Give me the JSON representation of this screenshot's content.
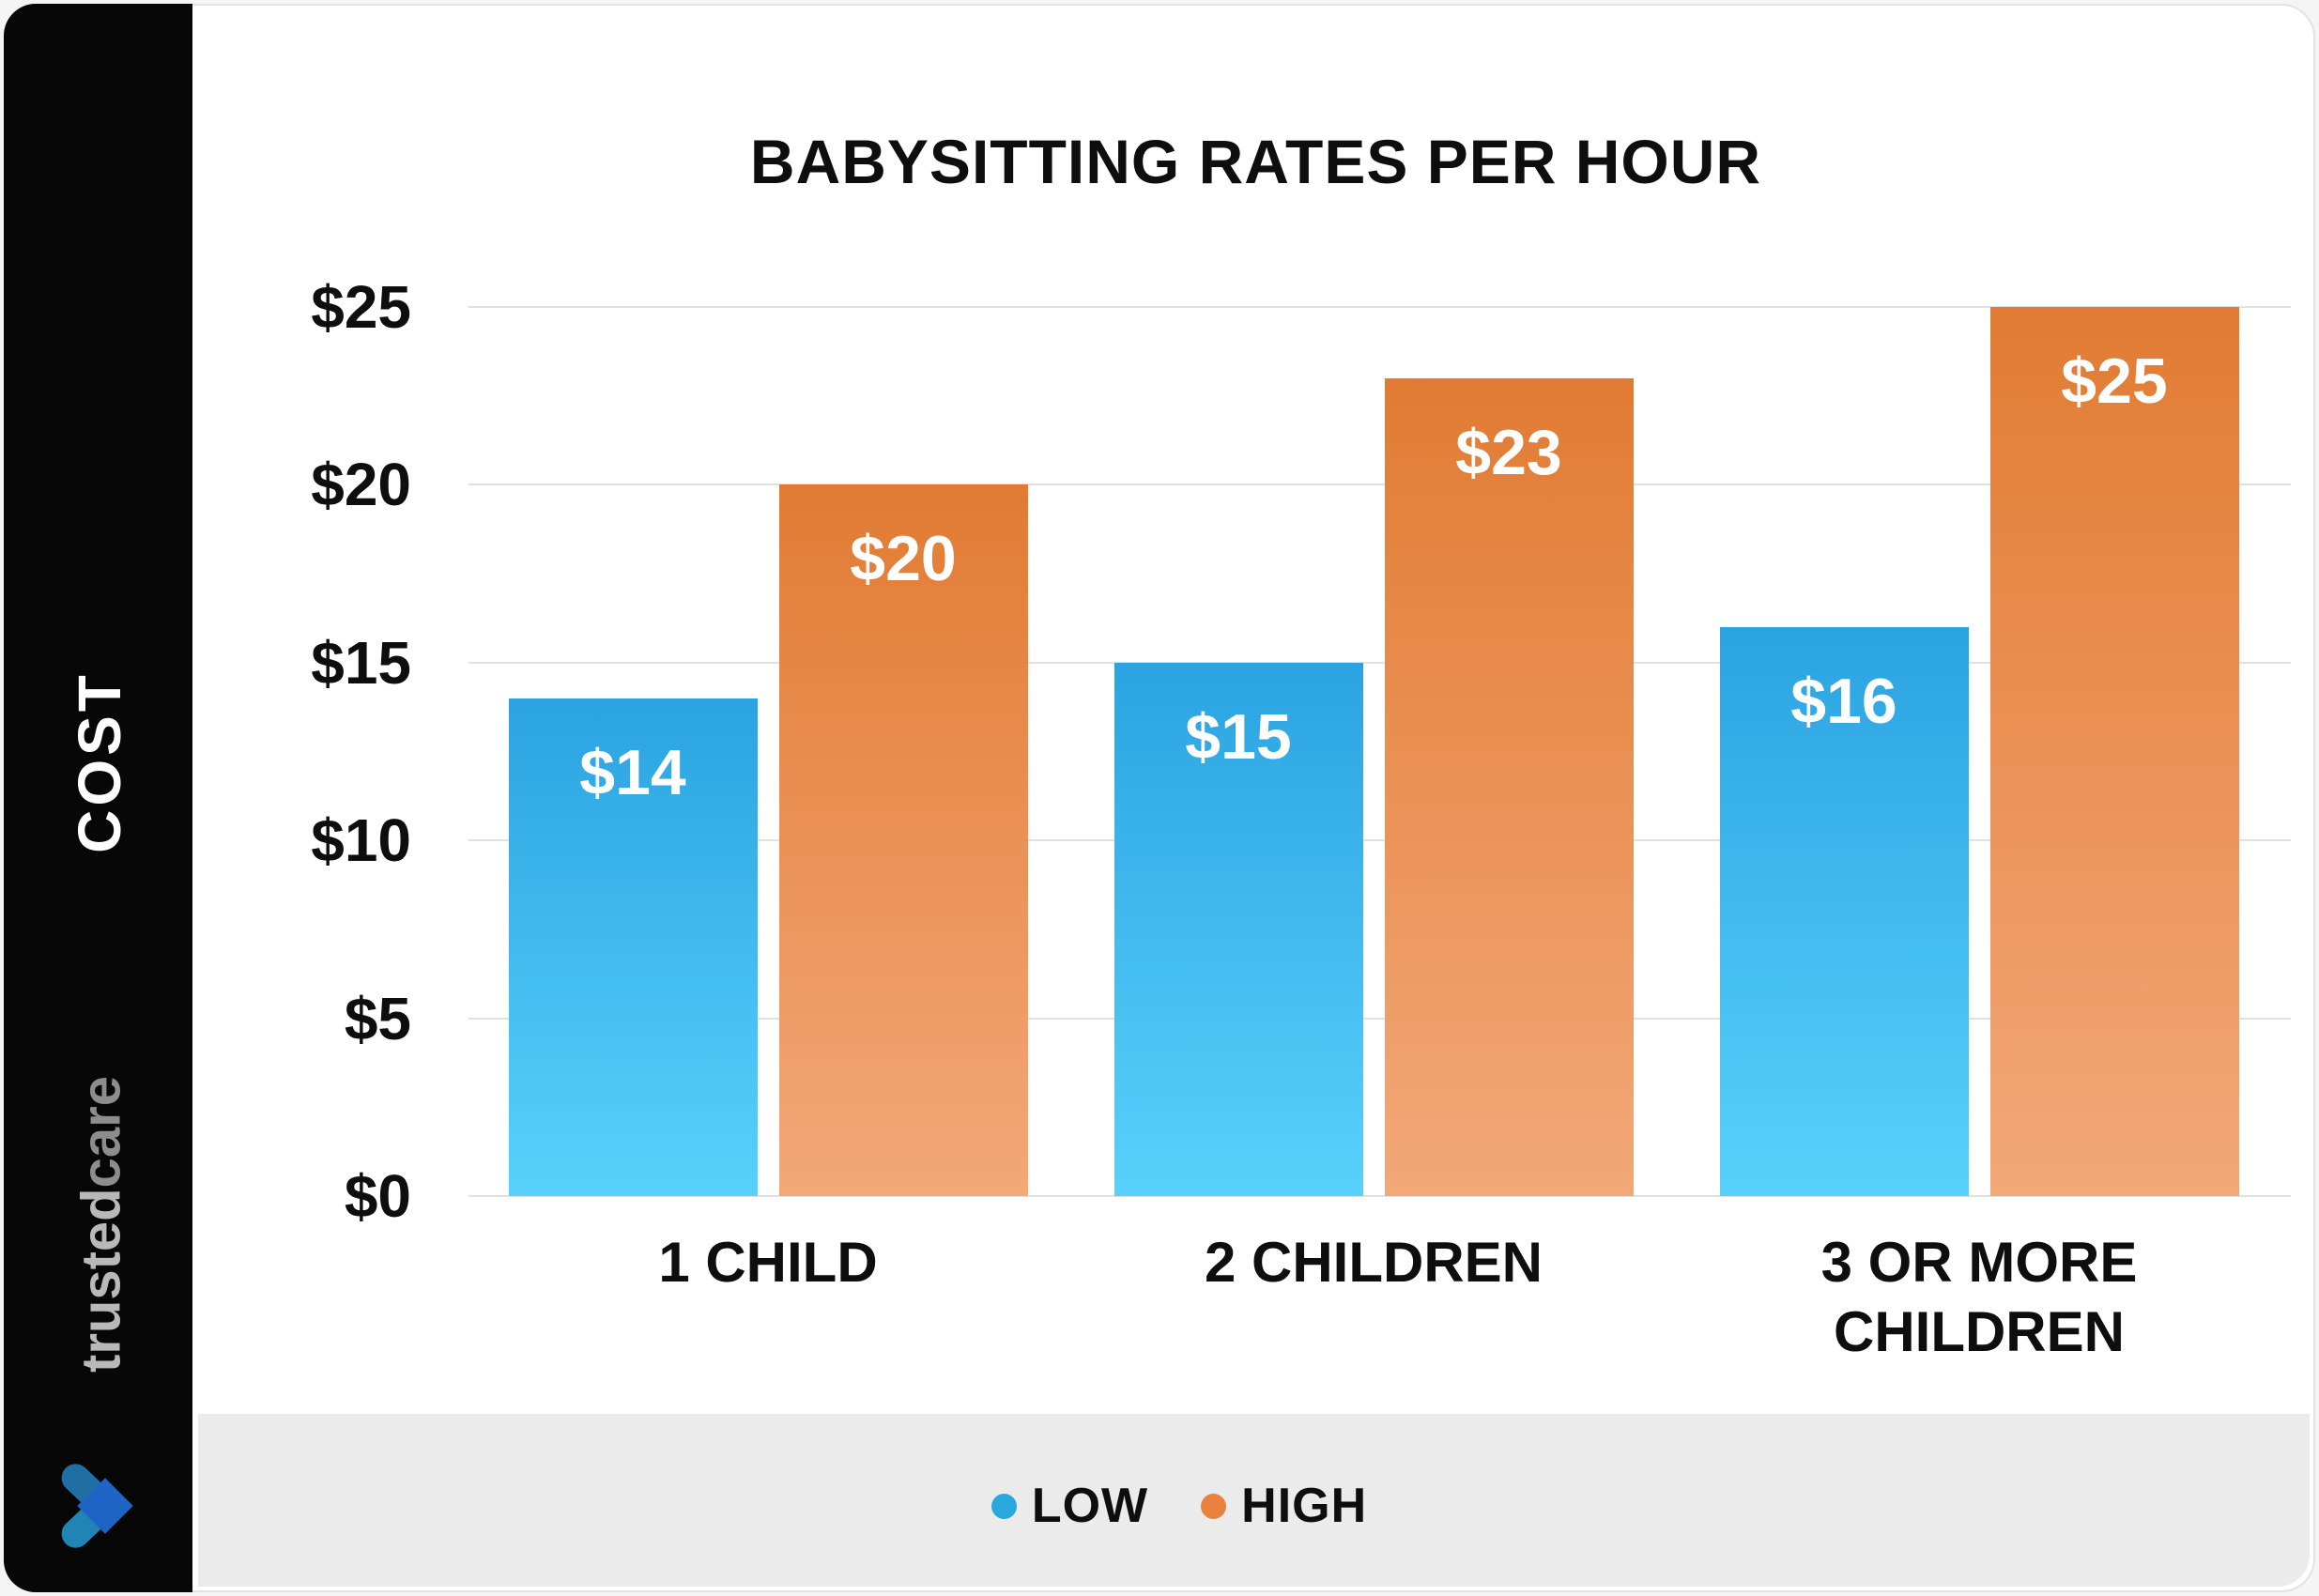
{
  "title": "BABYSITTING RATES PER HOUR",
  "sidebar": {
    "axis_title": "COST",
    "brand": {
      "part1": "trusted",
      "part2": "care"
    },
    "logo_colors": {
      "upper_arm": "#206fa4",
      "diamond": "#1d64c4",
      "lower_arm": "#2084b4"
    }
  },
  "chart_data": {
    "type": "bar",
    "title": "BABYSITTING RATES PER HOUR",
    "xlabel": "",
    "ylabel": "COST",
    "ylim": [
      0,
      25
    ],
    "grid": true,
    "legend_position": "bottom",
    "categories": [
      "1 CHILD",
      "2 CHILDREN",
      "3 OR MORE CHILDREN"
    ],
    "series": [
      {
        "name": "LOW",
        "values": [
          14,
          15,
          16
        ],
        "labels": [
          "$14",
          "$15",
          "$16"
        ],
        "color_top": "#2BA3E1",
        "color_bottom": "#58D1FC",
        "legend_color": "#29A8E0"
      },
      {
        "name": "HIGH",
        "values": [
          20,
          23,
          25
        ],
        "labels": [
          "$20",
          "$23",
          "$25"
        ],
        "color_top": "#E17B33",
        "color_bottom": "#F3A878",
        "legend_color": "#E8823C"
      }
    ],
    "y_ticks": [
      {
        "value": 25,
        "label": "$25"
      },
      {
        "value": 20,
        "label": "$20"
      },
      {
        "value": 15,
        "label": "$15"
      },
      {
        "value": 10,
        "label": "$10"
      },
      {
        "value": 5,
        "label": "$5"
      },
      {
        "value": 0,
        "label": "$0"
      }
    ]
  },
  "legend": {
    "items": [
      {
        "label": "LOW",
        "color": "#29A8E0"
      },
      {
        "label": "HIGH",
        "color": "#E8823C"
      }
    ]
  },
  "colors": {
    "sidebar_bg": "#070707",
    "card_bg": "#ffffff",
    "card_border": "#e3e3e3",
    "footer_bg": "#ebebeb",
    "grid_line": "#e1e1e1",
    "text": "#0e0e0e"
  }
}
